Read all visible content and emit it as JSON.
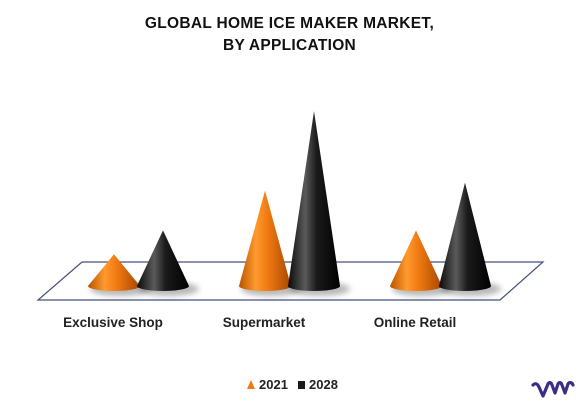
{
  "chart_data": {
    "type": "bar",
    "style": "3d-cone",
    "title_lines": [
      "GLOBAL HOME ICE MAKER MARKET,",
      "BY APPLICATION"
    ],
    "categories": [
      "Exclusive Shop",
      "Supermarket",
      "Online Retail"
    ],
    "series": [
      {
        "name": "2021",
        "color": "#F07A12",
        "values": [
          1.2,
          3.6,
          2.1
        ]
      },
      {
        "name": "2028",
        "color": "#1A1A1A",
        "values": [
          2.1,
          6.6,
          3.9
        ]
      }
    ],
    "ylim": [
      0,
      7
    ],
    "grid": false,
    "legend_position": "bottom-center",
    "logo_text": "vmr",
    "logo_color": "#3B2C86"
  }
}
